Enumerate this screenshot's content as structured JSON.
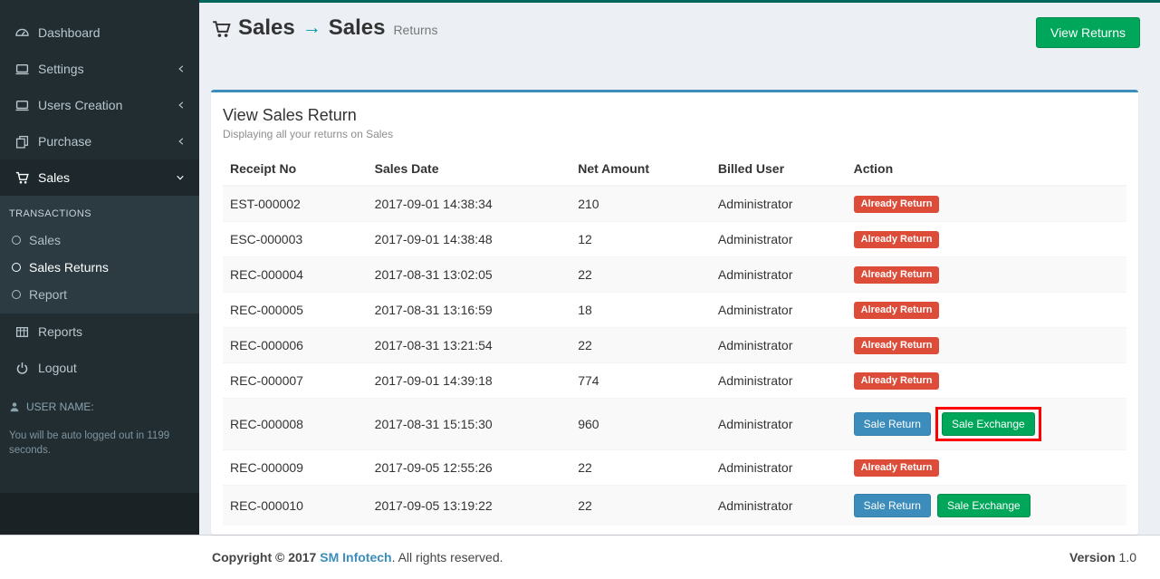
{
  "sidebar": {
    "items": [
      {
        "label": "Dashboard",
        "icon": "dashboard-icon"
      },
      {
        "label": "Settings",
        "icon": "settings-icon",
        "chevron": "left"
      },
      {
        "label": "Users Creation",
        "icon": "users-creation-icon",
        "chevron": "left"
      },
      {
        "label": "Purchase",
        "icon": "purchase-icon",
        "chevron": "left"
      },
      {
        "label": "Sales",
        "icon": "sales-icon",
        "chevron": "down",
        "active": true
      },
      {
        "label": "Reports",
        "icon": "reports-icon"
      },
      {
        "label": "Logout",
        "icon": "logout-icon"
      }
    ],
    "submenu": {
      "header": "TRANSACTIONS",
      "items": [
        {
          "label": "Sales"
        },
        {
          "label": "Sales Returns",
          "active": true
        },
        {
          "label": "Report"
        }
      ]
    },
    "user_label": "USER NAME:",
    "logout_note": "You will be auto logged out in 1199 seconds."
  },
  "header": {
    "breadcrumb": {
      "primary": "Sales",
      "arrow": "→",
      "secondary": "Sales",
      "suffix": "Returns"
    },
    "view_returns_button": "View Returns"
  },
  "panel": {
    "title": "View Sales Return",
    "subtitle": "Displaying all your returns on Sales",
    "table": {
      "columns": [
        "Receipt No",
        "Sales Date",
        "Net Amount",
        "Billed User",
        "Action"
      ],
      "rows": [
        {
          "receipt": "EST-000002",
          "date": "2017-09-01 14:38:34",
          "amount": "210",
          "user": "Administrator",
          "actions": [
            {
              "label": "Already Return",
              "kind": "badge",
              "style": "danger"
            }
          ]
        },
        {
          "receipt": "ESC-000003",
          "date": "2017-09-01 14:38:48",
          "amount": "12",
          "user": "Administrator",
          "actions": [
            {
              "label": "Already Return",
              "kind": "badge",
              "style": "danger"
            }
          ]
        },
        {
          "receipt": "REC-000004",
          "date": "2017-08-31 13:02:05",
          "amount": "22",
          "user": "Administrator",
          "actions": [
            {
              "label": "Already Return",
              "kind": "badge",
              "style": "danger"
            }
          ]
        },
        {
          "receipt": "REC-000005",
          "date": "2017-08-31 13:16:59",
          "amount": "18",
          "user": "Administrator",
          "actions": [
            {
              "label": "Already Return",
              "kind": "badge",
              "style": "danger"
            }
          ]
        },
        {
          "receipt": "REC-000006",
          "date": "2017-08-31 13:21:54",
          "amount": "22",
          "user": "Administrator",
          "actions": [
            {
              "label": "Already Return",
              "kind": "badge",
              "style": "danger"
            }
          ]
        },
        {
          "receipt": "REC-000007",
          "date": "2017-09-01 14:39:18",
          "amount": "774",
          "user": "Administrator",
          "actions": [
            {
              "label": "Already Return",
              "kind": "badge",
              "style": "danger"
            }
          ]
        },
        {
          "receipt": "REC-000008",
          "date": "2017-08-31 15:15:30",
          "amount": "960",
          "user": "Administrator",
          "actions": [
            {
              "label": "Sale Return",
              "kind": "button",
              "style": "primary"
            },
            {
              "label": "Sale Exchange",
              "kind": "button",
              "style": "success",
              "highlighted": true
            }
          ]
        },
        {
          "receipt": "REC-000009",
          "date": "2017-09-05 12:55:26",
          "amount": "22",
          "user": "Administrator",
          "actions": [
            {
              "label": "Already Return",
              "kind": "badge",
              "style": "danger"
            }
          ]
        },
        {
          "receipt": "REC-000010",
          "date": "2017-09-05 13:19:22",
          "amount": "22",
          "user": "Administrator",
          "actions": [
            {
              "label": "Sale Return",
              "kind": "button",
              "style": "primary"
            },
            {
              "label": "Sale Exchange",
              "kind": "button",
              "style": "success"
            }
          ]
        }
      ]
    }
  },
  "footer": {
    "copyright_prefix": "Copyright © 2017",
    "brand": "SM Infotech",
    "copyright_suffix": ". All rights reserved.",
    "version_label": "Version",
    "version_value": "1.0"
  },
  "colors": {
    "accent_blue": "#3c8dbc",
    "success_green": "#00a65a",
    "danger_red": "#dd4b39",
    "highlight_red": "#ff0000",
    "topbar_teal": "#00695c",
    "sidebar_dark": "#222d32"
  }
}
